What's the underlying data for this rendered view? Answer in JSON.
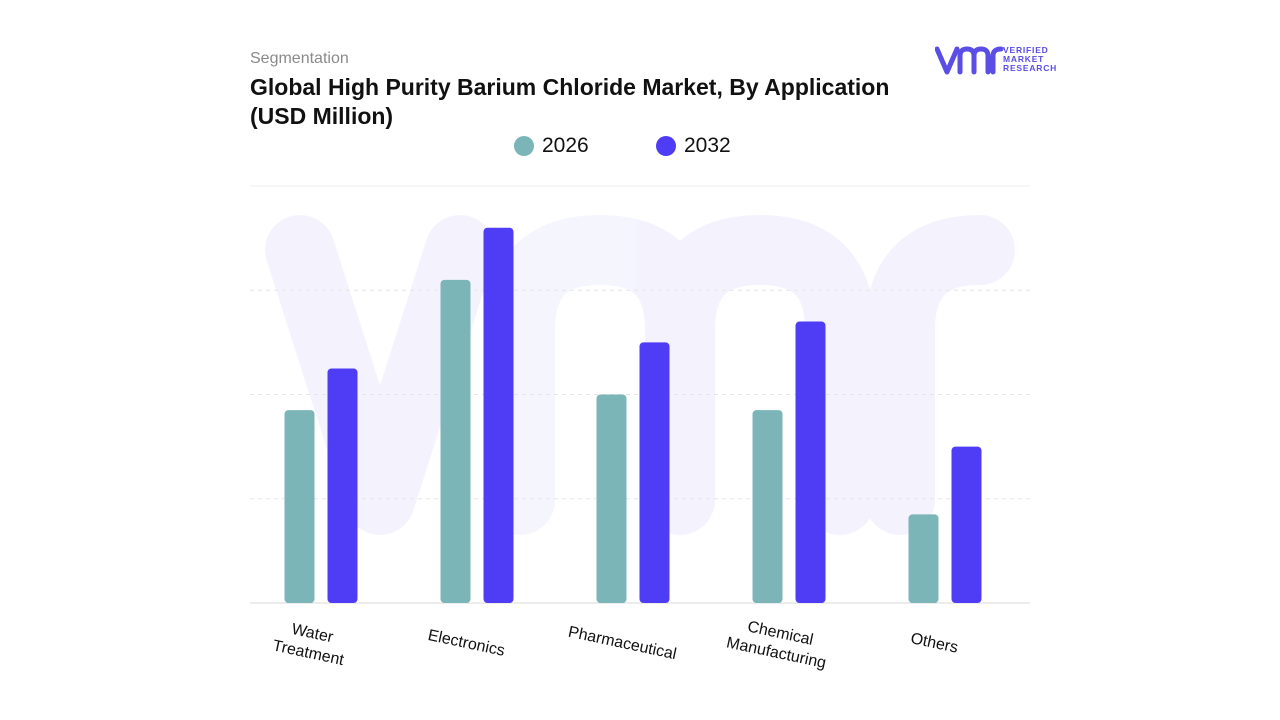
{
  "header": {
    "eyebrow": "Segmentation",
    "title_line1": "Global High Purity Barium Chloride Market, By Application",
    "title_line2": "(USD Million)"
  },
  "logo": {
    "mark": "vmr",
    "line1": "VERIFIED",
    "line2": "MARKET",
    "line3": "RESEARCH",
    "color": "#5a4ee6"
  },
  "chart_data": {
    "type": "bar",
    "categories": [
      "Water Treatment",
      "Electronics",
      "Pharmaceutical",
      "Chemical Manufacturing",
      "Others"
    ],
    "category_lines": [
      [
        "Water",
        "Treatment"
      ],
      [
        "Electronics"
      ],
      [
        "Pharmaceutical"
      ],
      [
        "Chemical",
        "Manufacturing"
      ],
      [
        "Others"
      ]
    ],
    "series": [
      {
        "name": "2026",
        "color": "#7bb5b7",
        "values": [
          37,
          62,
          40,
          37,
          17
        ]
      },
      {
        "name": "2032",
        "color": "#4f3cf5",
        "values": [
          45,
          72,
          50,
          54,
          30
        ]
      }
    ],
    "ylim": [
      0,
      80
    ],
    "grid": true,
    "legend": "top-center",
    "xlabel": "",
    "ylabel": ""
  }
}
